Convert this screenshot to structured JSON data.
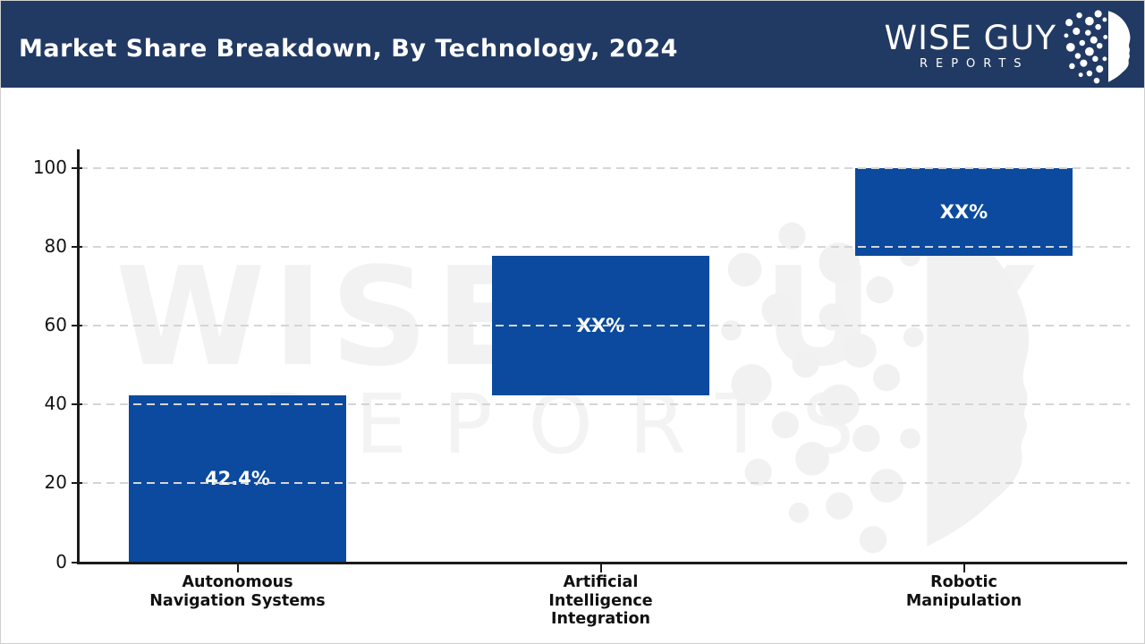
{
  "header": {
    "title": "Market Share Breakdown, By Technology, 2024",
    "bg_color": "#213A64",
    "logo": {
      "line1": "WISE GUY",
      "line2": "REPORTS"
    }
  },
  "watermark": {
    "line1": "WISE G U Y",
    "line2": "REPORTS"
  },
  "chart_data": {
    "type": "bar",
    "subtype": "waterfall",
    "title": "Market Share Breakdown, By Technology, 2024",
    "categories": [
      "Autonomous\nNavigation Systems",
      "Artificial\nIntelligence\nIntegration",
      "Robotic\nManipulation"
    ],
    "segments": [
      {
        "category": "Autonomous Navigation Systems",
        "start": 0,
        "end": 42.4,
        "label": "42.4%"
      },
      {
        "category": "Artificial Intelligence Integration",
        "start": 42.4,
        "end": 77.7,
        "label": "XX%"
      },
      {
        "category": "Robotic Manipulation",
        "start": 77.7,
        "end": 100,
        "label": "XX%"
      }
    ],
    "estimated_values": [
      42.4,
      35.3,
      22.3
    ],
    "ylim": [
      0,
      105
    ],
    "yticks": [
      0,
      20,
      40,
      60,
      80,
      100
    ],
    "grid": "dashed horizontal, drawn over bars",
    "legend": "none",
    "bar_color": "#0B4A9E",
    "grid_color": "#d5d5d5",
    "axis_color": "#1a1a1a",
    "watermark_color": "#f1f1f2"
  }
}
